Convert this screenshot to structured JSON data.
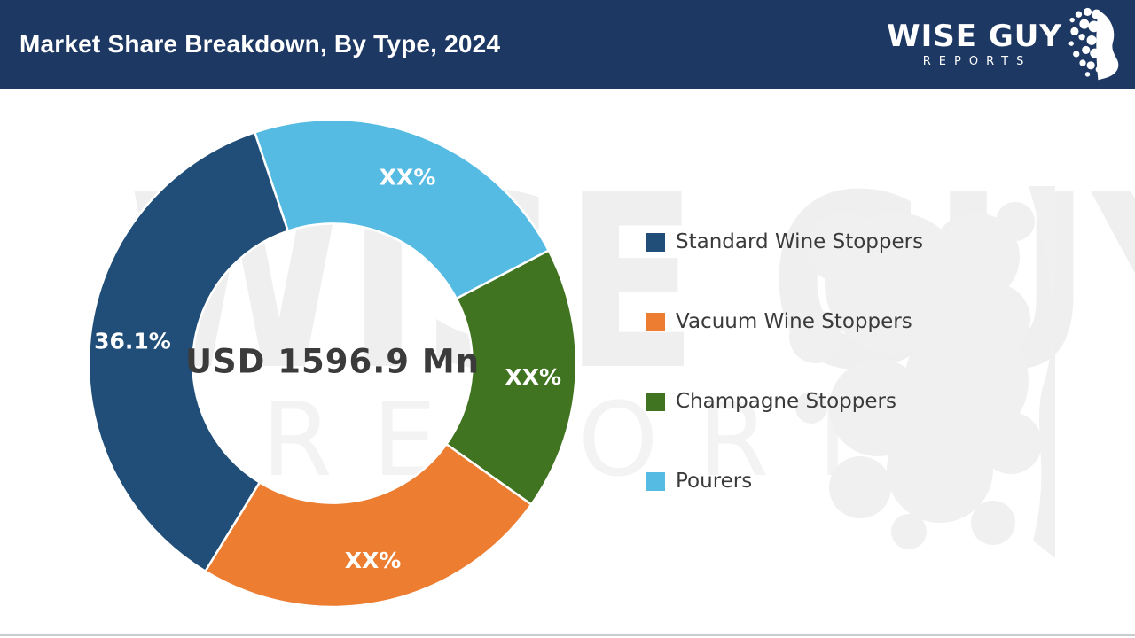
{
  "header": {
    "title": "Market Share Breakdown, By Type, 2024",
    "logo": {
      "name": "WISE GUY",
      "tagline": "REPORTS"
    }
  },
  "watermark": {
    "line1": "WISE GUY",
    "line2": "REPORTS"
  },
  "chart_data": {
    "type": "donut",
    "title": "Market Share Breakdown, By Type, 2024",
    "center_label": "USD 1596.9 Mn",
    "total_value": "USD 1596.9 Mn",
    "start_angle_deg": -18.6,
    "inner_radius_ratio": 0.573,
    "legend_position": "right",
    "segments": [
      {
        "name": "Pourers",
        "value_pct": 22.5,
        "data_label": "XX%",
        "color": "#56BBE3"
      },
      {
        "name": "Champagne Stoppers",
        "value_pct": 17.5,
        "data_label": "XX%",
        "color": "#407421"
      },
      {
        "name": "Vacuum Wine Stoppers",
        "value_pct": 23.9,
        "data_label": "XX%",
        "color": "#EC7D31"
      },
      {
        "name": "Standard Wine Stoppers",
        "value_pct": 36.1,
        "data_label": "36.1%",
        "color": "#204E78"
      }
    ],
    "legend": [
      {
        "label": "Standard Wine Stoppers",
        "color": "#204E78"
      },
      {
        "label": "Vacuum Wine Stoppers",
        "color": "#EC7D31"
      },
      {
        "label": "Champagne Stoppers",
        "color": "#407421"
      },
      {
        "label": "Pourers",
        "color": "#56BBE3"
      }
    ]
  },
  "colors": {
    "header_bg": "#1E3864",
    "text_dark": "#3B3B3B",
    "watermark": "#EFEFEF"
  }
}
